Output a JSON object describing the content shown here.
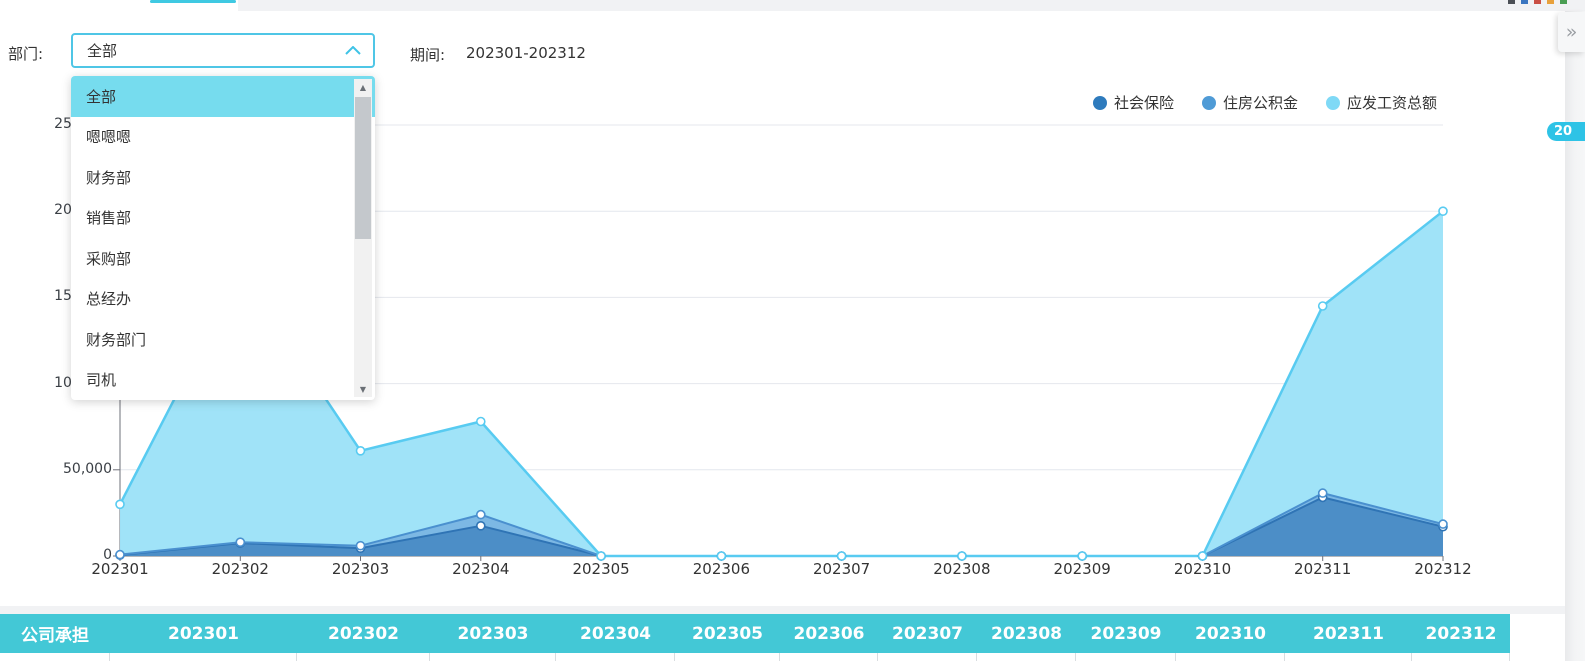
{
  "filters": {
    "department_label": "部门:",
    "department_value": "全部",
    "period_label": "期间:",
    "period_value": "202301-202312"
  },
  "dropdown": {
    "items": [
      "全部",
      "嗯嗯嗯",
      "财务部",
      "销售部",
      "采购部",
      "总经办",
      "财务部门",
      "司机"
    ],
    "selected_index": 0
  },
  "legend": [
    {
      "label": "社会保险",
      "color": "#2e7bbd"
    },
    {
      "label": "住房公积金",
      "color": "#4f9bd6"
    },
    {
      "label": "应发工资总额",
      "color": "#7fd9f6"
    }
  ],
  "chart_data": {
    "type": "area",
    "categories": [
      "202301",
      "202302",
      "202303",
      "202304",
      "202305",
      "202306",
      "202307",
      "202308",
      "202309",
      "202310",
      "202311",
      "202312"
    ],
    "series": [
      {
        "name": "社会保险",
        "line_color": "#2f74b5",
        "fill_color": "#2f74b5",
        "fill_opacity": 0.62,
        "values": [
          500,
          7500,
          4500,
          17500,
          0,
          0,
          0,
          0,
          0,
          0,
          34000,
          17000
        ]
      },
      {
        "name": "住房公积金",
        "line_color": "#4a90cf",
        "fill_color": "#6ea7dd",
        "fill_opacity": 0.72,
        "values": [
          800,
          8000,
          6000,
          24000,
          0,
          0,
          0,
          0,
          0,
          0,
          36500,
          18500
        ]
      },
      {
        "name": "应发工资总额",
        "line_color": "#58cbf1",
        "fill_color": "#9de2f8",
        "fill_opacity": 0.97,
        "values": [
          30000,
          165000,
          61000,
          78000,
          0,
          0,
          0,
          0,
          0,
          0,
          145000,
          200000
        ]
      }
    ],
    "ylim": [
      0,
      250000
    ],
    "yticks": [
      {
        "label": "0",
        "value": 0
      },
      {
        "label": "50,000",
        "value": 50000
      },
      {
        "label": "100,000",
        "value": 100000
      },
      {
        "label": "150,000",
        "value": 150000
      },
      {
        "label": "200,000",
        "value": 200000
      },
      {
        "label": "250,000",
        "value": 250000
      }
    ],
    "grid": true,
    "legend_position": "top-right"
  },
  "table": {
    "row_header": "公司承担",
    "columns": [
      "202301",
      "202302",
      "202303",
      "202304",
      "202305",
      "202306",
      "202307",
      "202308",
      "202309",
      "202310",
      "202311",
      "202312"
    ]
  },
  "right_rail": {
    "badge_text": "20"
  },
  "icons": {
    "expand": "»",
    "scroll_up": "▲",
    "scroll_down": "▼"
  },
  "colors": {
    "accent_cyan": "#43c8d6",
    "badge_cyan": "#2ec3e6",
    "select_border": "#4fc6e6",
    "dropdown_highlight": "#76dcee",
    "tab_underline": "#3fc9e2"
  }
}
